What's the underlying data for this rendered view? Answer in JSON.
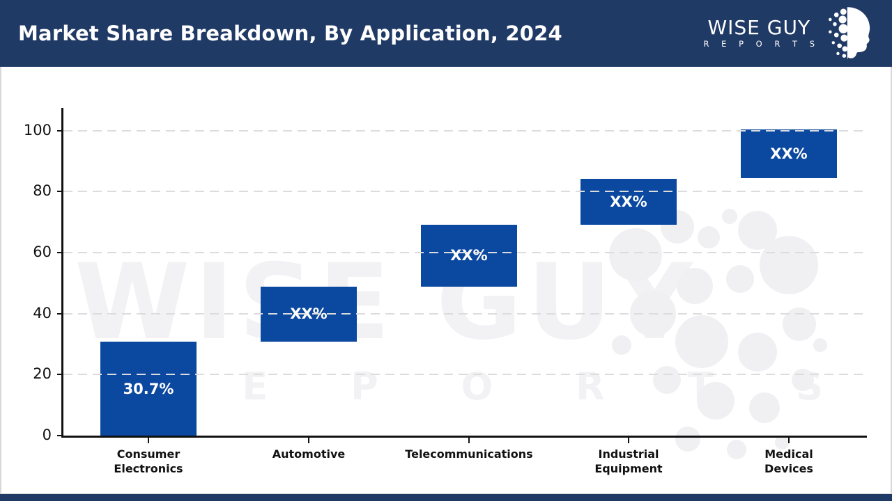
{
  "header": {
    "title": "Market Share Breakdown, By Application, 2024",
    "logo": {
      "name": "WISE GUY",
      "tagline": "R E P O R T S"
    }
  },
  "watermark": {
    "big": "WISE GUY",
    "sub": "R E P O R T S"
  },
  "colors": {
    "header_bg": "#203a66",
    "footer_bg": "#203a66",
    "bar": "#0b48a0",
    "grid": "#dcdcdc",
    "axis": "#111111",
    "watermark": "#f2f2f5",
    "value_label": "#ffffff"
  },
  "chart_data": {
    "type": "bar",
    "subtype": "waterfall",
    "title": "Market Share Breakdown, By Application, 2024",
    "xlabel": "",
    "ylabel": "",
    "ylim": [
      0,
      107
    ],
    "yticks": [
      0,
      20,
      40,
      60,
      80,
      100
    ],
    "grid": "dashed-horizontal",
    "legend_position": "none",
    "bar_color": "#0b48a0",
    "categories": [
      "Consumer Electronics",
      "Automotive",
      "Telecommunications",
      "Industrial Equipment",
      "Medical Devices"
    ],
    "category_lines": [
      [
        "Consumer",
        "Electronics"
      ],
      [
        "Automotive"
      ],
      [
        "Telecommunications"
      ],
      [
        "Industrial",
        "Equipment"
      ],
      [
        "Medical",
        "Devices"
      ]
    ],
    "bars": [
      {
        "category": "Consumer Electronics",
        "start": 0,
        "end": 30.7,
        "value": 30.7,
        "label": "30.7%"
      },
      {
        "category": "Automotive",
        "start": 30.7,
        "end": 48.9,
        "value": 18.2,
        "label": "XX%"
      },
      {
        "category": "Telecommunications",
        "start": 48.9,
        "end": 69.0,
        "value": 20.1,
        "label": "XX%"
      },
      {
        "category": "Industrial Equipment",
        "start": 69.2,
        "end": 84.2,
        "value": 15.0,
        "label": "XX%"
      },
      {
        "category": "Medical Devices",
        "start": 84.3,
        "end": 100.3,
        "value": 16.0,
        "label": "XX%"
      }
    ]
  }
}
